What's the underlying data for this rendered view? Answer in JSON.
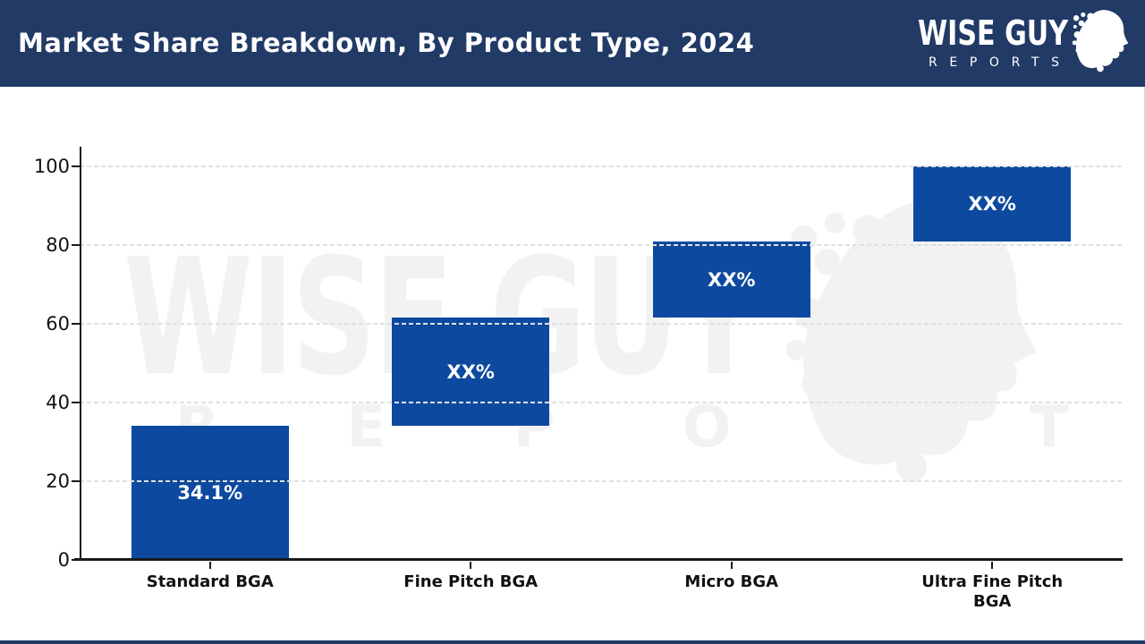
{
  "header": {
    "title": "Market Share Breakdown, By Product Type, 2024",
    "logo_line1": "WISE GUY",
    "logo_line2": "REPORTS"
  },
  "watermark": {
    "line1": "WISE GUY",
    "line2": "R E P O R T S"
  },
  "chart_data": {
    "type": "bar",
    "subtype": "waterfall-floating-segments",
    "title": "Market Share Breakdown, By Product Type, 2024",
    "categories": [
      "Standard BGA",
      "Fine Pitch BGA",
      "Micro BGA",
      "Ultra Fine Pitch BGA"
    ],
    "bars": [
      {
        "category": "Standard BGA",
        "start": 0,
        "end": 34.1,
        "label": "34.1%"
      },
      {
        "category": "Fine Pitch BGA",
        "start": 34.1,
        "end": 61.5,
        "label": "XX%"
      },
      {
        "category": "Micro BGA",
        "start": 61.5,
        "end": 80.9,
        "label": "XX%"
      },
      {
        "category": "Ultra Fine Pitch BGA",
        "start": 80.9,
        "end": 100,
        "label": "XX%"
      }
    ],
    "y_ticks": [
      0,
      20,
      40,
      60,
      80,
      100
    ],
    "ylim": [
      0,
      105
    ],
    "xlabel": "",
    "ylabel": "",
    "legend": "none",
    "grid": "horizontal-dashed-above-bars"
  },
  "colors": {
    "header_bg": "#213a66",
    "footer_bg": "#213a66",
    "bar": "#0d4a9f",
    "bar_label": "#ffffff",
    "axis": "#1a1a1a",
    "grid": "#e0e0e0",
    "watermark": "#f2f2f2"
  }
}
